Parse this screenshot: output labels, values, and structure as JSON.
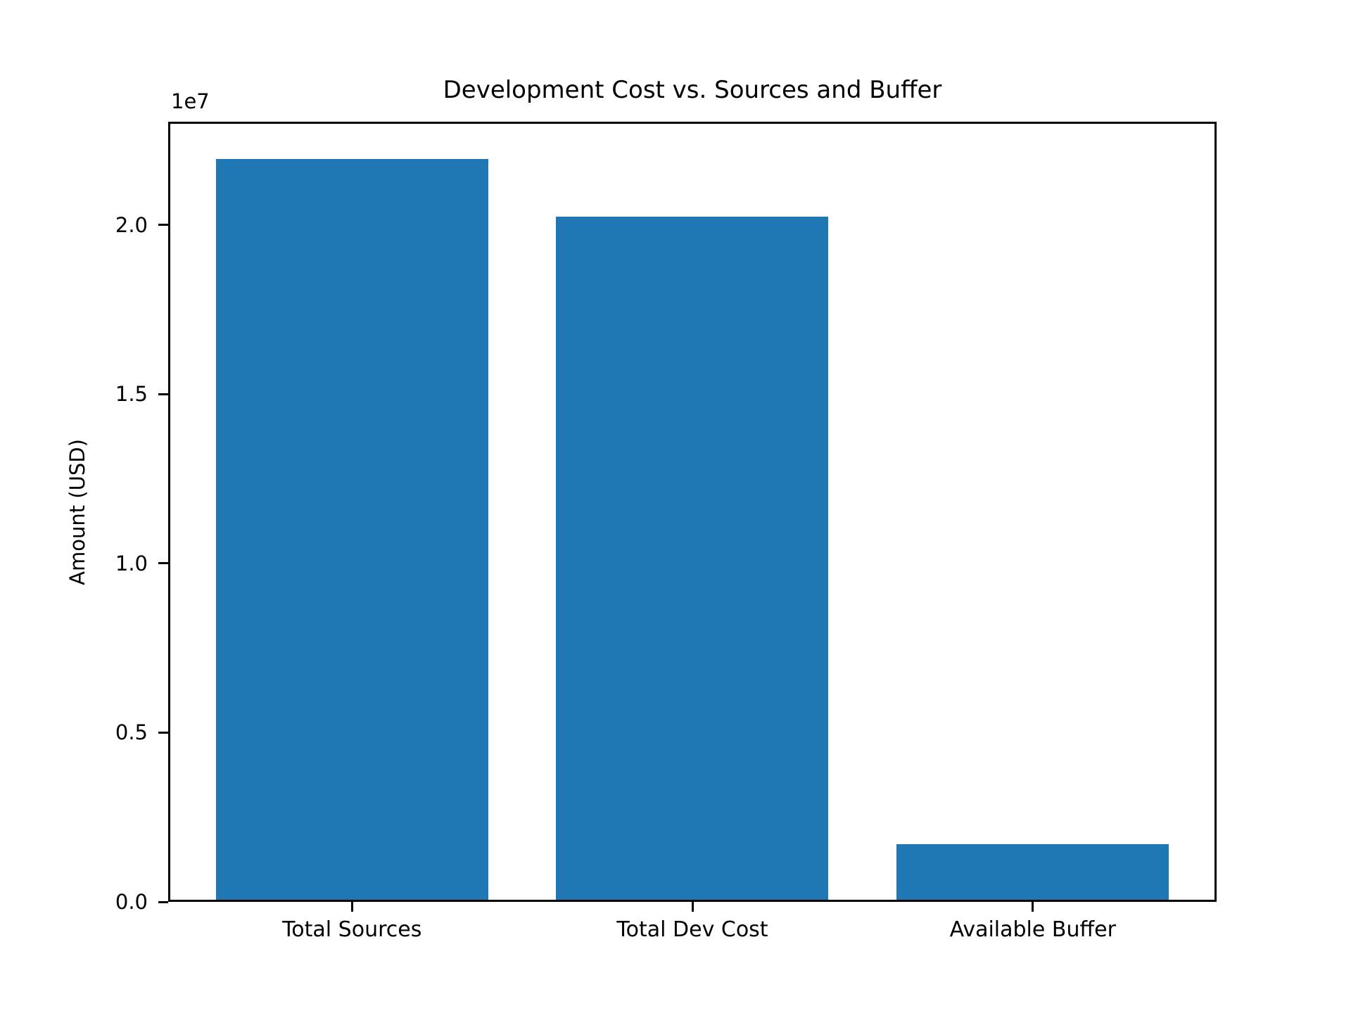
{
  "figure": {
    "background": "#ffffff",
    "text_color": "#000000",
    "spine_color": "#000000"
  },
  "chart_data": {
    "type": "bar",
    "title": "Development Cost vs. Sources and Buffer",
    "categories": [
      "Total Sources",
      "Total Dev Cost",
      "Available Buffer"
    ],
    "values": [
      21950000,
      20250000,
      1700000
    ],
    "xlabel": "",
    "ylabel": "Amount (USD)",
    "ylim": [
      0,
      23050000
    ],
    "yticks": [
      0,
      5000000,
      10000000,
      15000000,
      20000000
    ],
    "ytick_labels": [
      "0.0",
      "0.5",
      "1.0",
      "1.5",
      "2.0"
    ],
    "offset_text": "1e7",
    "bar_color": "#1f77b4",
    "grid": false,
    "legend": "none"
  }
}
